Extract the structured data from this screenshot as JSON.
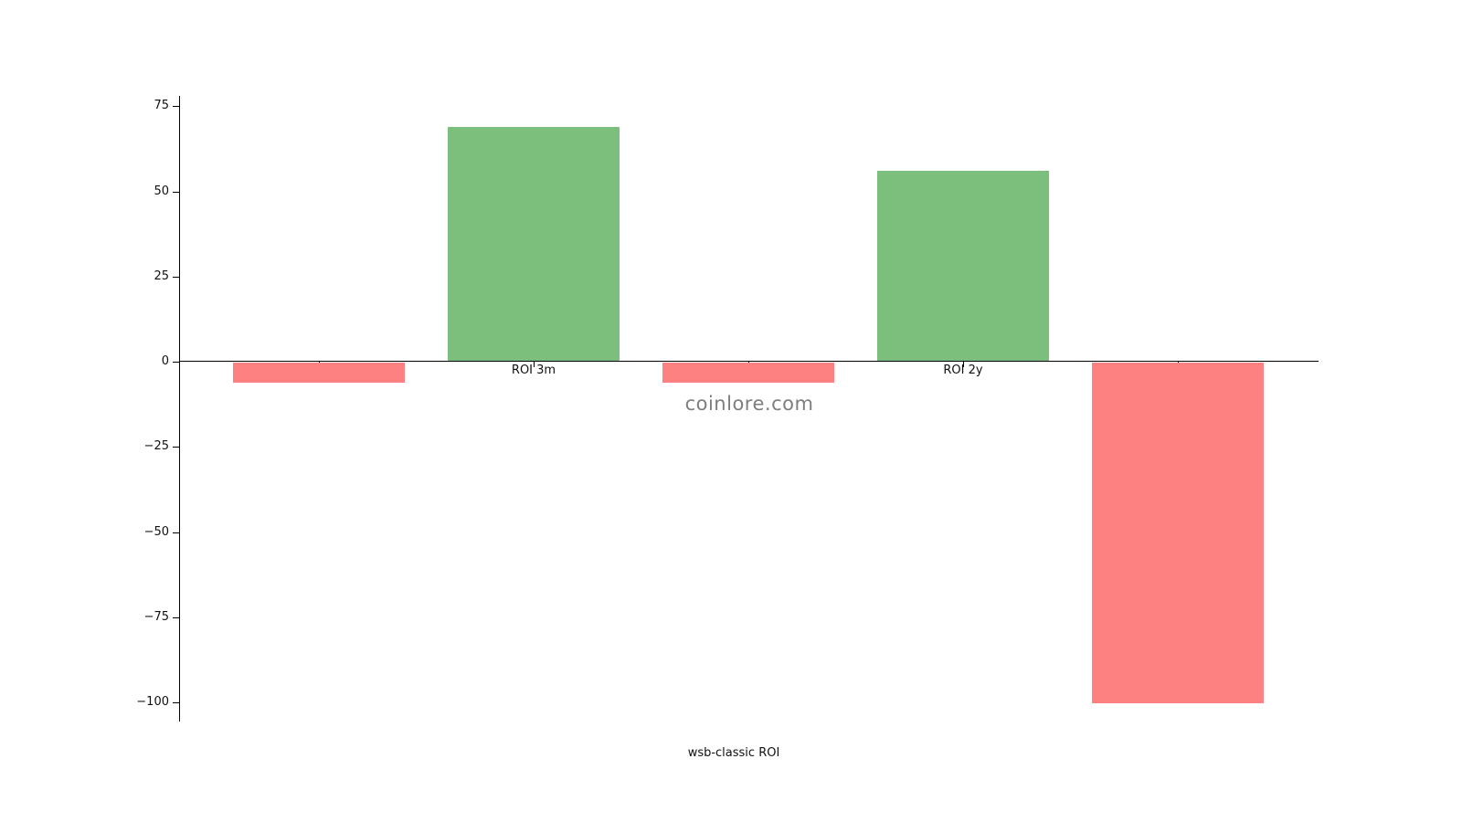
{
  "watermark": "coinlore.com",
  "chart_data": {
    "type": "bar",
    "title": "",
    "xlabel": "wsb-classic ROI",
    "ylabel": "",
    "categories": [
      "",
      "ROI 3m",
      "",
      "ROI 2y",
      ""
    ],
    "values": [
      -6,
      69,
      -6,
      56,
      -100
    ],
    "yticks": [
      75,
      50,
      25,
      0,
      -25,
      -50,
      -75,
      -100
    ],
    "ytick_labels": [
      "75",
      "50",
      "25",
      "0",
      "−25",
      "−50",
      "−75",
      "−100"
    ],
    "ylim": [
      -106,
      78
    ],
    "grid": false,
    "legend": "none",
    "positive_color": "#7cbf7c",
    "negative_color": "#fe8181",
    "axis_color": "#000000",
    "watermark_color": "#7e7e7e"
  }
}
